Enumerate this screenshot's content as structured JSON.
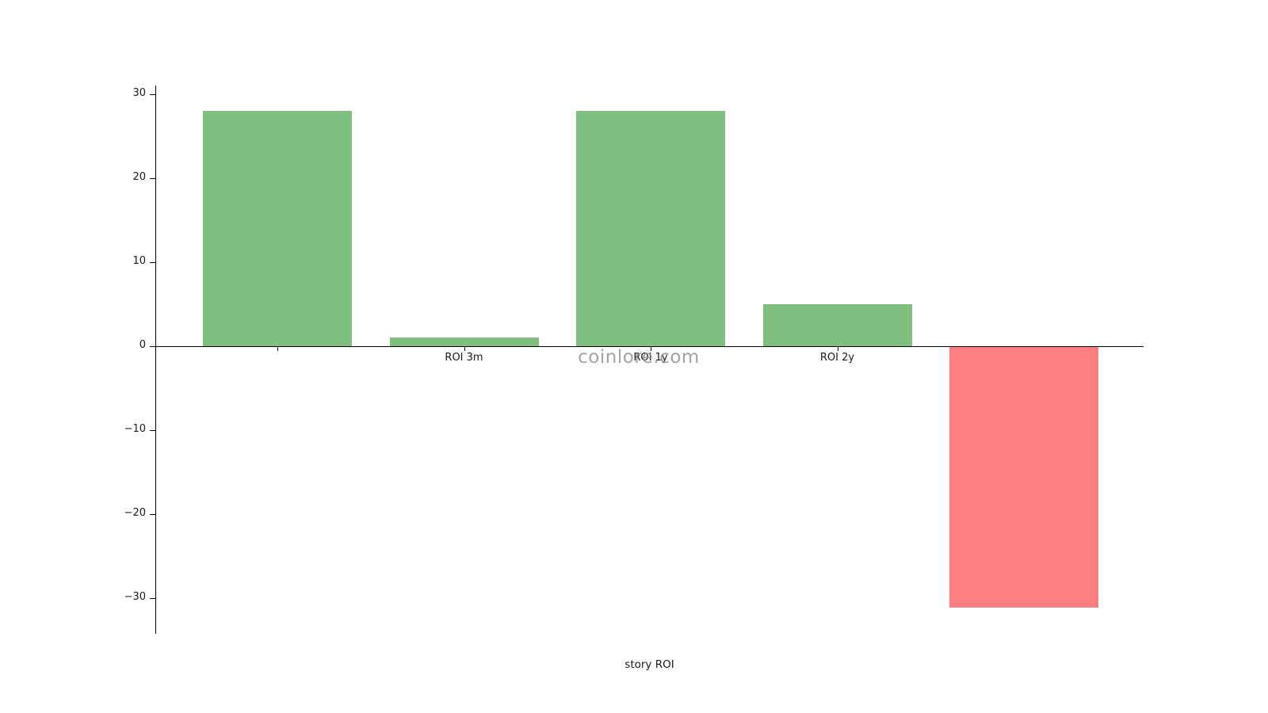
{
  "page": {
    "background_color": "#ffffff",
    "text_color": "#1a1a1a"
  },
  "watermark": {
    "text": "coinlore.com",
    "color": "#949494"
  },
  "chart_data": {
    "type": "bar",
    "title": "",
    "xlabel": "story ROI",
    "ylabel": "",
    "categories": [
      "",
      "ROI 3m",
      "ROI 1y",
      "ROI 2y",
      ""
    ],
    "values": [
      28,
      1,
      28,
      5,
      -31
    ],
    "bar_colors": [
      "#80bf80",
      "#80bf80",
      "#80bf80",
      "#80bf80",
      "#ff8080"
    ],
    "positive_color": "#80bf80",
    "negative_color": "#ff8080",
    "yticks": [
      30,
      20,
      10,
      0,
      -10,
      -20,
      -30
    ],
    "ytick_labels": [
      "30",
      "20",
      "10",
      "0",
      "−10",
      "−20",
      "−30"
    ],
    "ylim": [
      -34.4,
      31.0
    ],
    "grid": false,
    "legend": null,
    "axis_color": "#000000"
  }
}
